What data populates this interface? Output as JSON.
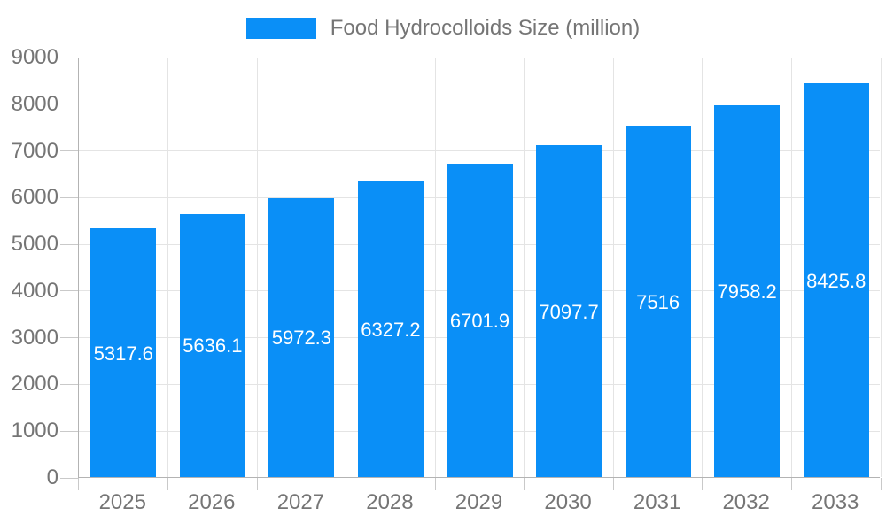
{
  "chart_data": {
    "type": "bar",
    "title": "Food Hydrocolloids Size (million)",
    "legend": {
      "label": "Food Hydrocolloids Size (million)",
      "position": "top"
    },
    "categories": [
      "2025",
      "2026",
      "2027",
      "2028",
      "2029",
      "2030",
      "2031",
      "2032",
      "2033"
    ],
    "series": [
      {
        "name": "Food Hydrocolloids Size (million)",
        "values": [
          5317.6,
          5636.1,
          5972.3,
          6327.2,
          6701.9,
          7097.7,
          7516,
          7958.2,
          8425.8
        ]
      }
    ],
    "value_labels": [
      "5317.6",
      "5636.1",
      "5972.3",
      "6327.2",
      "6701.9",
      "7097.7",
      "7516",
      "7958.2",
      "8425.8"
    ],
    "xlabel": "",
    "ylabel": "",
    "ylim": [
      0,
      9000
    ],
    "yticks": [
      0,
      1000,
      2000,
      3000,
      4000,
      5000,
      6000,
      7000,
      8000,
      9000
    ],
    "grid": true,
    "legend_position": "top",
    "colors": {
      "bar": "#0a8ff7",
      "grid": "#e4e4e4",
      "axis": "#b3b3b3",
      "tick": "#c9c9c9",
      "text": "#757575",
      "value_label": "#ffffff",
      "background": "#ffffff"
    }
  }
}
